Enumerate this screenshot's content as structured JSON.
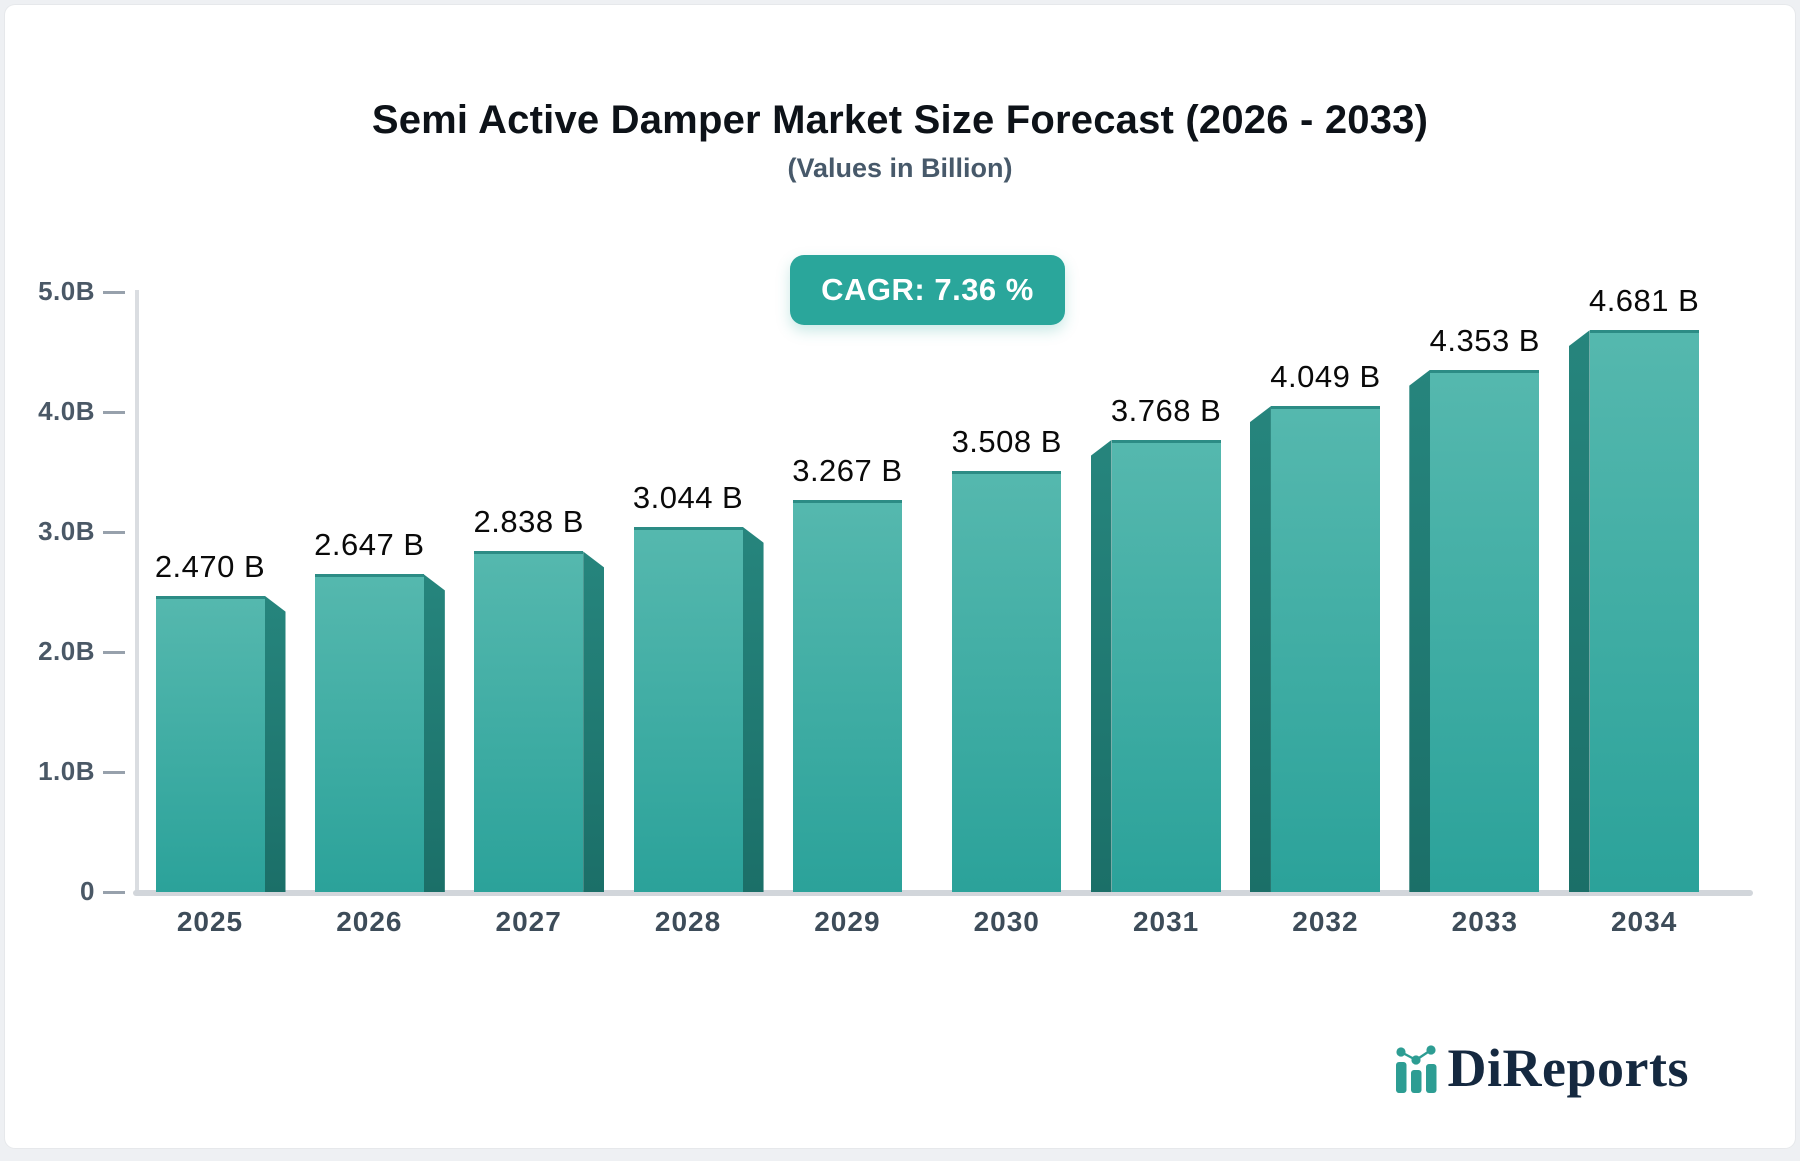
{
  "page": {
    "title": "Semi Active Damper Market Size Forecast (2026 - 2033)",
    "subtitle": "(Values in Billion)",
    "cagr_label": "CAGR: 7.36 %"
  },
  "brand": {
    "name": "DiReports",
    "icon": "bar-line-chart-logo-icon"
  },
  "colors": {
    "bar_front_top": "#55b8ae",
    "bar_front_bottom": "#2ba29a",
    "bar_side": "#1e7c74",
    "bar_top_edge": "#2c8c85",
    "badge_bg": "#2aa69b",
    "axis_text": "#4a5866",
    "year_text": "#3d4c59",
    "title_text": "#0d1218",
    "subtitle_text": "#47596a",
    "logo_text": "#152940",
    "logo_teal": "#2d9d93",
    "axis_line": "#d2d6db"
  },
  "chart_data": {
    "type": "bar",
    "title": "Semi Active Damper Market Size Forecast (2026 - 2033)",
    "subtitle": "(Values in Billion)",
    "unit": "Billion",
    "cagr_percent": 7.36,
    "categories": [
      "2025",
      "2026",
      "2027",
      "2028",
      "2029",
      "2030",
      "2031",
      "2032",
      "2033",
      "2034"
    ],
    "values": [
      2.47,
      2.647,
      2.838,
      3.044,
      3.267,
      3.508,
      3.768,
      4.049,
      4.353,
      4.681
    ],
    "value_labels": [
      "2.470 B",
      "2.647 B",
      "2.838 B",
      "3.044 B",
      "3.267 B",
      "3.508 B",
      "3.768 B",
      "4.049 B",
      "4.353 B",
      "4.681 B"
    ],
    "xlabel": "",
    "ylabel": "",
    "ylim": [
      0,
      5.0
    ],
    "yticks": [
      {
        "value": 5.0,
        "label": "5.0B"
      },
      {
        "value": 4.0,
        "label": "4.0B"
      },
      {
        "value": 3.0,
        "label": "3.0B"
      },
      {
        "value": 2.0,
        "label": "2.0B"
      },
      {
        "value": 1.0,
        "label": "1.0B"
      },
      {
        "value": 0,
        "label": "0"
      }
    ],
    "grid": false,
    "legend": false,
    "style": "3d-perspective-teal-bars"
  }
}
